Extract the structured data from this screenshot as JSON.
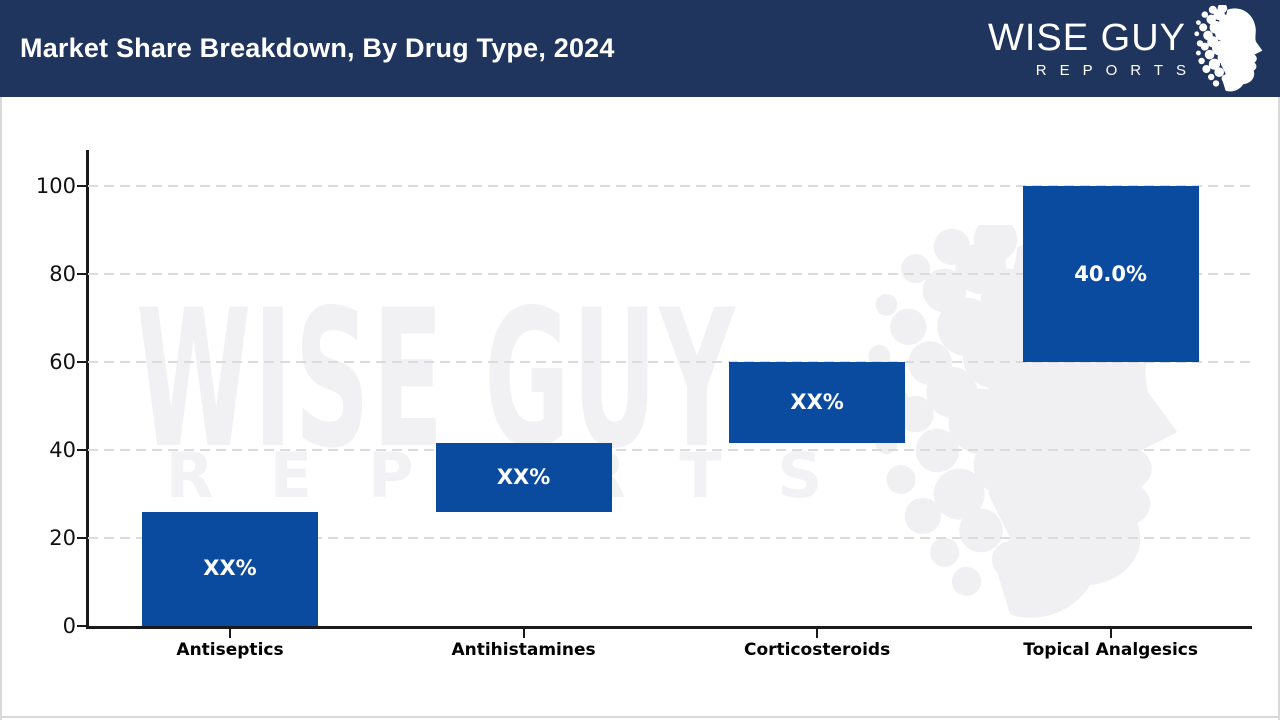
{
  "header": {
    "title": "Market Share Breakdown, By Drug Type, 2024",
    "background_color": "#20355E",
    "logo": {
      "wordmark": "WISE GUY",
      "subtitle": "REPORTS"
    }
  },
  "watermark": {
    "wordmark": "WISE GUY",
    "subtitle": "REPORTS"
  },
  "chart_data": {
    "type": "bar",
    "variant": "waterfall",
    "title": "Market Share Breakdown, By Drug Type, 2024",
    "categories": [
      "Antiseptics",
      "Antihistamines",
      "Corticosteroids",
      "Topical Analgesics"
    ],
    "series": [
      {
        "category": "Antiseptics",
        "start": 0,
        "end": 25.8,
        "label": "XX%"
      },
      {
        "category": "Antihistamines",
        "start": 25.8,
        "end": 41.7,
        "label": "XX%"
      },
      {
        "category": "Corticosteroids",
        "start": 41.7,
        "end": 60.0,
        "label": "XX%"
      },
      {
        "category": "Topical Analgesics",
        "start": 60.0,
        "end": 100.0,
        "label": "40.0%"
      }
    ],
    "xlabel": "",
    "ylabel": "",
    "ylim": [
      0,
      108
    ],
    "yticks": [
      0,
      20,
      40,
      60,
      80,
      100
    ],
    "grid": "horizontal-dashed",
    "legend": "none",
    "colors": {
      "bar": "#0A4BA0",
      "bar_label": "#FFFFFF",
      "axis": "#1A1A1A",
      "grid": "#DBDBDB",
      "tick_label": "#111111"
    }
  }
}
